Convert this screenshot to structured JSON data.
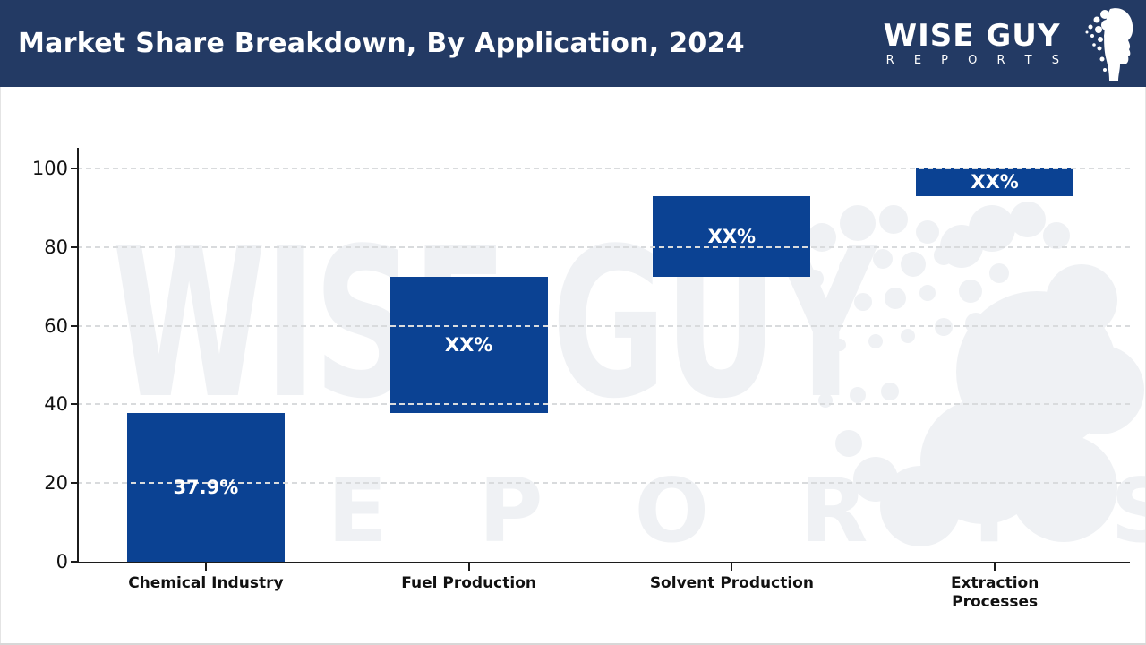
{
  "header": {
    "title": "Market Share Breakdown, By Application, 2024",
    "logo_line1": "WISE GUY",
    "logo_line2": "R E P O R T S",
    "bg_color": "#233a64",
    "text_color": "#ffffff"
  },
  "watermark": {
    "line1": "WISE GUY",
    "line2": "R E P O R T S"
  },
  "chart_data": {
    "type": "bar",
    "variant": "waterfall",
    "title": "Market Share Breakdown, By Application, 2024",
    "categories": [
      "Chemical Industry",
      "Fuel Production",
      "Solvent Production",
      "Extraction\nProcesses"
    ],
    "segments": [
      {
        "category": "Chemical Industry",
        "start": 0,
        "end": 37.9,
        "label": "37.9%"
      },
      {
        "category": "Fuel Production",
        "start": 37.9,
        "end": 72.5,
        "label": "XX%"
      },
      {
        "category": "Solvent Production",
        "start": 72.5,
        "end": 93.0,
        "label": "XX%"
      },
      {
        "category": "Extraction Processes",
        "start": 93.0,
        "end": 100.0,
        "label": "XX%"
      }
    ],
    "xlabel": "",
    "ylabel": "",
    "ylim": [
      0,
      100
    ],
    "yticks": [
      0,
      20,
      40,
      60,
      80,
      100
    ],
    "grid": "horizontal-dashed",
    "grid_over_bars": true,
    "legend": "none",
    "bar_color": "#0b4293",
    "bar_label_color": "#ffffff",
    "axis_color": "#1c1c1c"
  }
}
